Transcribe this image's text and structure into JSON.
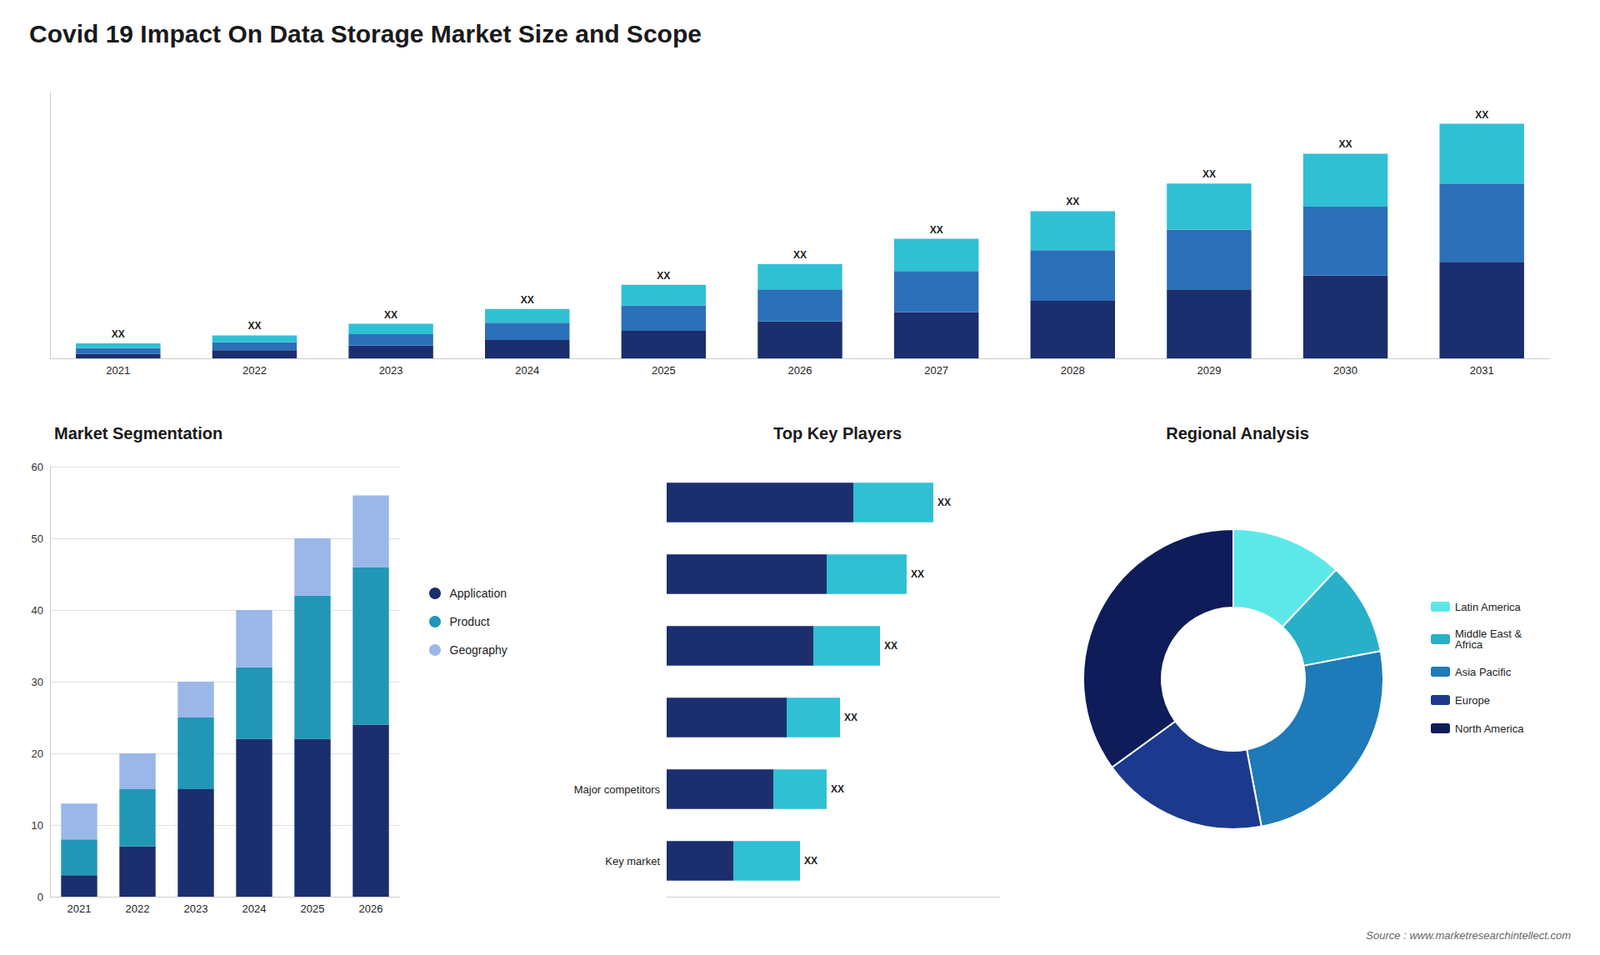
{
  "chart_data": [
    {
      "type": "bar",
      "title": "Covid 19 Impact On Data Storage Market Size and Scope",
      "annotations": [
        "Source : www.marketresearchintellect.com"
      ],
      "categories": [
        "2021",
        "2022",
        "2023",
        "2024",
        "2025",
        "2026",
        "2027",
        "2028",
        "2029",
        "2030",
        "2031"
      ],
      "stacked": true,
      "series": [
        {
          "color": "#1b2e6e",
          "values": [
            2,
            3.5,
            5.5,
            8,
            12,
            16,
            20,
            25,
            30,
            36,
            42
          ]
        },
        {
          "color": "#2b70b8",
          "values": [
            2.5,
            3.5,
            5,
            7.5,
            11,
            14,
            18,
            22,
            26,
            30,
            34
          ]
        },
        {
          "color": "#30c0d4",
          "values": [
            2,
            3,
            4.5,
            6,
            9,
            11,
            14,
            17,
            20,
            23,
            26
          ],
          "value_labels": [
            "XX",
            "XX",
            "XX",
            "XX",
            "XX",
            "XX",
            "XX",
            "XX",
            "XX",
            "XX",
            "XX"
          ]
        }
      ],
      "ylim": [
        0,
        116
      ],
      "tick_labels": "x",
      "grid": false
    },
    {
      "type": "bar",
      "title": "Market Segmentation",
      "categories": [
        "2021",
        "2022",
        "2023",
        "2024",
        "2025",
        "2026"
      ],
      "stacked": true,
      "series": [
        {
          "name": "Application",
          "color": "#1b2e6e",
          "values": [
            3,
            7,
            15,
            22,
            22,
            24
          ]
        },
        {
          "name": "Product",
          "color": "#2196b5",
          "values": [
            5,
            8,
            10,
            10,
            20,
            22
          ]
        },
        {
          "name": "Geography",
          "color": "#9ab7e8",
          "values": [
            5,
            5,
            5,
            8,
            8,
            10
          ]
        }
      ],
      "ylim": [
        0,
        60
      ],
      "yticks": [
        0,
        10,
        20,
        30,
        40,
        50,
        60
      ],
      "grid": true,
      "legend": "right"
    },
    {
      "type": "bar",
      "title": "Top Key Players",
      "orientation": "horizontal",
      "stacked": true,
      "categories": [
        null,
        null,
        null,
        null,
        "Major competitors",
        "Key market"
      ],
      "series": [
        {
          "color": "#1b2e6e",
          "values": [
            14,
            12,
            11,
            9,
            8,
            5
          ]
        },
        {
          "color": "#30c0d4",
          "values": [
            6,
            6,
            5,
            4,
            4,
            5
          ],
          "value_labels": [
            "XX",
            "XX",
            "XX",
            "XX",
            "XX",
            "XX"
          ]
        }
      ],
      "xlim": [
        0,
        25
      ],
      "tick_labels": "y",
      "grid": false
    },
    {
      "type": "pie",
      "title": "Regional Analysis",
      "categories": [
        "Latin America",
        "Middle East &\nAfrica",
        "Asia Pacific",
        "Europe",
        "North America"
      ],
      "values": [
        12,
        10,
        25,
        18,
        35
      ],
      "colors": [
        "#5de8e8",
        "#28b0c8",
        "#1e7ab8",
        "#1b3a8e",
        "#0e1d5a"
      ],
      "legend": "right"
    }
  ]
}
